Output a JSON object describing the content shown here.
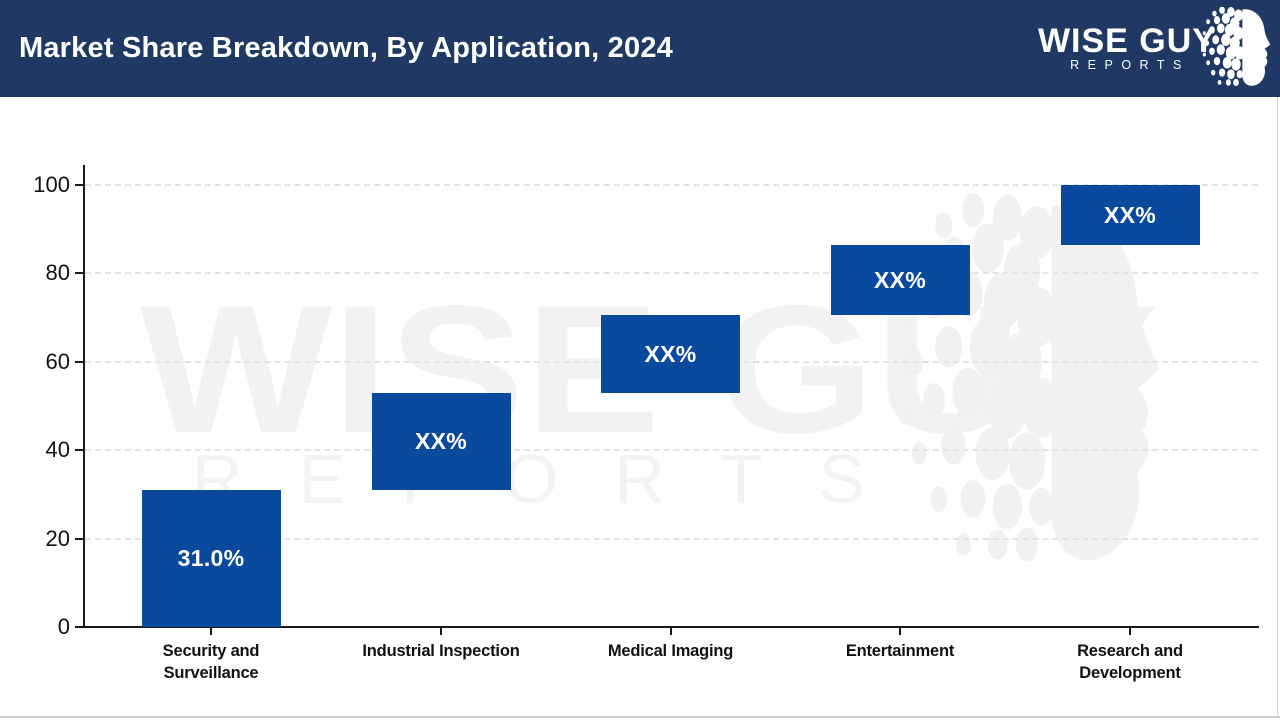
{
  "header": {
    "title": "Market Share Breakdown, By Application, 2024",
    "background": "#1f3864",
    "logo": {
      "line1": "WISE GUY",
      "line2": "REPORTS"
    }
  },
  "watermark": {
    "line1": "WISE GUY",
    "line2": "REPORTS"
  },
  "chart_data": {
    "type": "bar",
    "subtype": "waterfall-stacked-percent",
    "title": "Market Share Breakdown, By Application, 2024",
    "categories": [
      "Security and Surveillance",
      "Industrial Inspection",
      "Medical Imaging",
      "Entertainment",
      "Research and Development"
    ],
    "segments": [
      {
        "category": "Security and Surveillance",
        "label": "31.0%",
        "start": 0,
        "end": 31.0
      },
      {
        "category": "Industrial Inspection",
        "label": "XX%",
        "start": 31.0,
        "end": 53.0
      },
      {
        "category": "Medical Imaging",
        "label": "XX%",
        "start": 53.0,
        "end": 70.5
      },
      {
        "category": "Entertainment",
        "label": "XX%",
        "start": 70.5,
        "end": 86.5
      },
      {
        "category": "Research and Development",
        "label": "XX%",
        "start": 86.5,
        "end": 100.0
      }
    ],
    "yticks": [
      0,
      20,
      40,
      60,
      80,
      100
    ],
    "ylim": [
      0,
      104
    ],
    "xlabel": "",
    "ylabel": "",
    "grid": "horizontal-dashed",
    "legend": "none",
    "colors": {
      "bar": "#0a4a9e",
      "bar_label": "#ffffff",
      "grid": "#e3e3e3",
      "axis": "#1a1a1a",
      "tick_label": "#111111",
      "category_label": "#111111",
      "header_bg": "#1f3864",
      "watermark": "#f2f2f3"
    }
  }
}
